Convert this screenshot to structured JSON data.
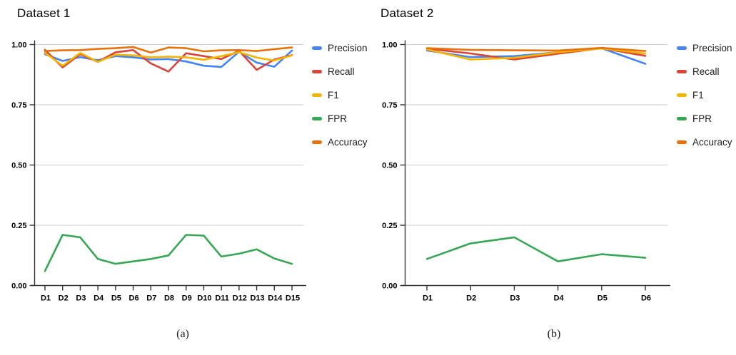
{
  "figure": {
    "background": "#ffffff"
  },
  "palette": {
    "precision": "#4285F4",
    "recall": "#DB4437",
    "f1": "#F4B400",
    "fpr": "#34A853",
    "accuracy": "#E8710A",
    "gridline": "#CCCCCC",
    "axis": "#333333",
    "tick_text": "#000000",
    "legend_text": "#212121"
  },
  "chart_data": [
    {
      "type": "line",
      "title": "Dataset 1",
      "caption": "(a)",
      "xlabel": "",
      "ylabel": "",
      "ylim": [
        0,
        1
      ],
      "grid": true,
      "legend_position": "right",
      "y_ticks": [
        {
          "label": "1.00",
          "value": 1.0
        },
        {
          "label": "0.75",
          "value": 0.75
        },
        {
          "label": "0.50",
          "value": 0.5
        },
        {
          "label": "0.25",
          "value": 0.25
        },
        {
          "label": "0.00",
          "value": 0.0
        }
      ],
      "categories": [
        "D1",
        "D2",
        "D3",
        "D4",
        "D5",
        "D6",
        "D7",
        "D8",
        "D9",
        "D10",
        "D11",
        "D12",
        "D13",
        "D14",
        "D15"
      ],
      "series": [
        {
          "name": "Precision",
          "color_key": "precision",
          "values": [
            0.96,
            0.932,
            0.948,
            0.935,
            0.952,
            0.947,
            0.938,
            0.94,
            0.93,
            0.912,
            0.907,
            0.97,
            0.925,
            0.908,
            0.975
          ]
        },
        {
          "name": "Recall",
          "color_key": "recall",
          "values": [
            0.978,
            0.905,
            0.96,
            0.928,
            0.968,
            0.977,
            0.922,
            0.888,
            0.964,
            0.952,
            0.94,
            0.974,
            0.895,
            0.938,
            0.956
          ]
        },
        {
          "name": "F1",
          "color_key": "f1",
          "values": [
            0.966,
            0.912,
            0.965,
            0.928,
            0.958,
            0.955,
            0.947,
            0.95,
            0.947,
            0.937,
            0.952,
            0.968,
            0.946,
            0.934,
            0.955
          ]
        },
        {
          "name": "FPR",
          "color_key": "fpr",
          "values": [
            0.06,
            0.21,
            0.2,
            0.11,
            0.09,
            0.1,
            0.11,
            0.125,
            0.21,
            0.207,
            0.12,
            0.132,
            0.15,
            0.112,
            0.09
          ]
        },
        {
          "name": "Accuracy",
          "color_key": "accuracy",
          "values": [
            0.973,
            0.976,
            0.977,
            0.982,
            0.985,
            0.99,
            0.967,
            0.988,
            0.985,
            0.972,
            0.976,
            0.977,
            0.973,
            0.981,
            0.988
          ]
        }
      ]
    },
    {
      "type": "line",
      "title": "Dataset 2",
      "caption": "(b)",
      "xlabel": "",
      "ylabel": "",
      "ylim": [
        0,
        1
      ],
      "grid": true,
      "legend_position": "right",
      "y_ticks": [
        {
          "label": "1.00",
          "value": 1.0
        },
        {
          "label": "0.75",
          "value": 0.75
        },
        {
          "label": "0.50",
          "value": 0.5
        },
        {
          "label": "0.25",
          "value": 0.25
        },
        {
          "label": "0.00",
          "value": 0.0
        }
      ],
      "categories": [
        "D1",
        "D2",
        "D3",
        "D4",
        "D5",
        "D6"
      ],
      "series": [
        {
          "name": "Precision",
          "color_key": "precision",
          "values": [
            0.975,
            0.948,
            0.952,
            0.968,
            0.985,
            0.92
          ]
        },
        {
          "name": "Recall",
          "color_key": "recall",
          "values": [
            0.983,
            0.963,
            0.938,
            0.962,
            0.985,
            0.953
          ]
        },
        {
          "name": "F1",
          "color_key": "f1",
          "values": [
            0.98,
            0.938,
            0.945,
            0.968,
            0.984,
            0.963
          ]
        },
        {
          "name": "FPR",
          "color_key": "fpr",
          "values": [
            0.11,
            0.175,
            0.2,
            0.1,
            0.13,
            0.115
          ]
        },
        {
          "name": "Accuracy",
          "color_key": "accuracy",
          "values": [
            0.985,
            0.978,
            0.976,
            0.975,
            0.986,
            0.973
          ]
        }
      ]
    }
  ]
}
